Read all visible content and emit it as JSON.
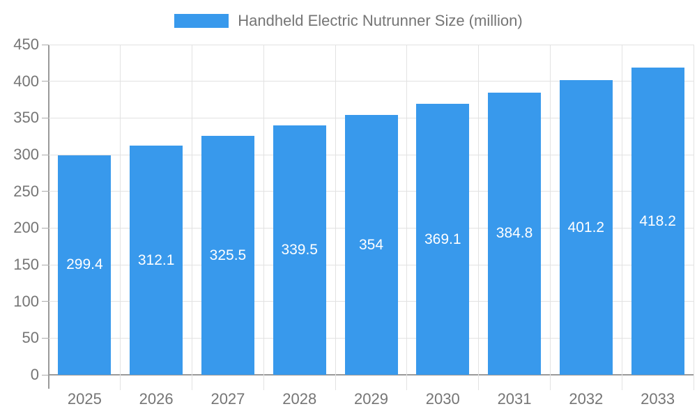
{
  "legend": {
    "label": "Handheld Electric Nutrunner Size (million)",
    "swatch_color": "#3899EC"
  },
  "chart_data": {
    "type": "bar",
    "title": "Handheld Electric Nutrunner Size (million)",
    "categories": [
      "2025",
      "2026",
      "2027",
      "2028",
      "2029",
      "2030",
      "2031",
      "2032",
      "2033"
    ],
    "series": [
      {
        "name": "Handheld Electric Nutrunner Size (million)",
        "values": [
          299.4,
          312.1,
          325.5,
          339.5,
          354,
          369.1,
          384.8,
          401.2,
          418.2
        ]
      }
    ],
    "value_labels": [
      "299.4",
      "312.1",
      "325.5",
      "339.5",
      "354",
      "369.1",
      "384.8",
      "401.2",
      "418.2"
    ],
    "xlabel": "",
    "ylabel": "",
    "ylim": [
      0,
      450
    ],
    "y_ticks": [
      0,
      50,
      100,
      150,
      200,
      250,
      300,
      350,
      400,
      450
    ],
    "y_tick_labels": [
      "0",
      "50",
      "100",
      "150",
      "200",
      "250",
      "300",
      "350",
      "400",
      "450"
    ],
    "grid": true,
    "legend_position": "top",
    "colors": {
      "bar": "#3899EC",
      "grid": "#e2e2e2",
      "axis": "#9a9a9a",
      "text": "#757575",
      "value_label": "#ffffff"
    }
  }
}
